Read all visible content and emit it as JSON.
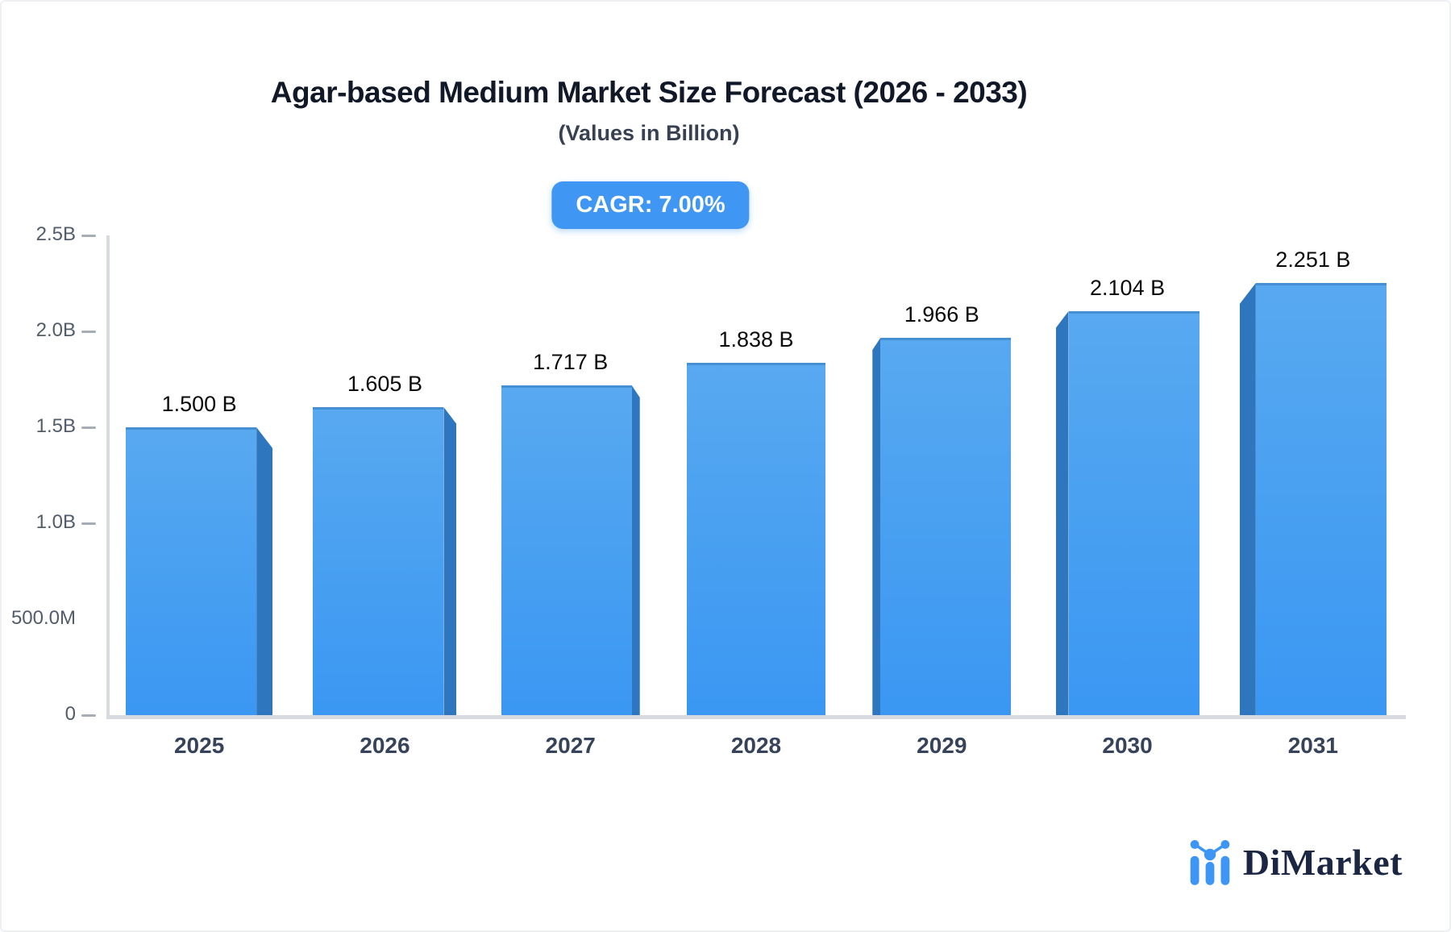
{
  "header": {
    "title": "Agar-based Medium Market Size Forecast (2026 - 2033)",
    "subtitle": "(Values in Billion)",
    "cagr_label": "CAGR: 7.00%"
  },
  "chart_data": {
    "type": "bar",
    "title": "Agar-based Medium Market Size Forecast (2026 - 2033)",
    "subtitle": "(Values in Billion)",
    "cagr_annotation": "CAGR: 7.00%",
    "categories": [
      "2025",
      "2026",
      "2027",
      "2028",
      "2029",
      "2030",
      "2031"
    ],
    "values": [
      1.5,
      1.605,
      1.717,
      1.838,
      1.966,
      2.104,
      2.251
    ],
    "value_labels": [
      "1.500 B",
      "1.605 B",
      "1.717 B",
      "1.838 B",
      "1.966 B",
      "2.104 B",
      "2.251 B"
    ],
    "y_ticks": [
      {
        "label": "0",
        "value": 0,
        "has_dash": true
      },
      {
        "label": "500.0M",
        "value": 0.5,
        "has_dash": false
      },
      {
        "label": "1.0B",
        "value": 1.0,
        "has_dash": true
      },
      {
        "label": "1.5B",
        "value": 1.5,
        "has_dash": true
      },
      {
        "label": "2.0B",
        "value": 2.0,
        "has_dash": true
      },
      {
        "label": "2.5B",
        "value": 2.5,
        "has_dash": true
      }
    ],
    "ylim": [
      0,
      2.5
    ],
    "xlabel": "",
    "ylabel": "",
    "grid": false,
    "legend": "none",
    "bar_style": "3d-beveled"
  },
  "colors": {
    "bar_face_top": "#58a9f0",
    "bar_face_bottom": "#3a97f2",
    "bar_side": "#2e76bd",
    "badge_bg": "#4097f3",
    "badge_text": "#ffffff",
    "axis_line": "#d7dade",
    "tick_dash": "#a7adb7",
    "title_text": "#111827",
    "value_label_text": "#0b0b0b",
    "x_label_text": "#36435a",
    "y_label_text": "#525c6a",
    "logo_navy": "#1a2642",
    "logo_blue": "#3d96f5"
  },
  "branding": {
    "logo_text": "DiMarket",
    "logo_icon": "bar-line-chart-icon"
  }
}
